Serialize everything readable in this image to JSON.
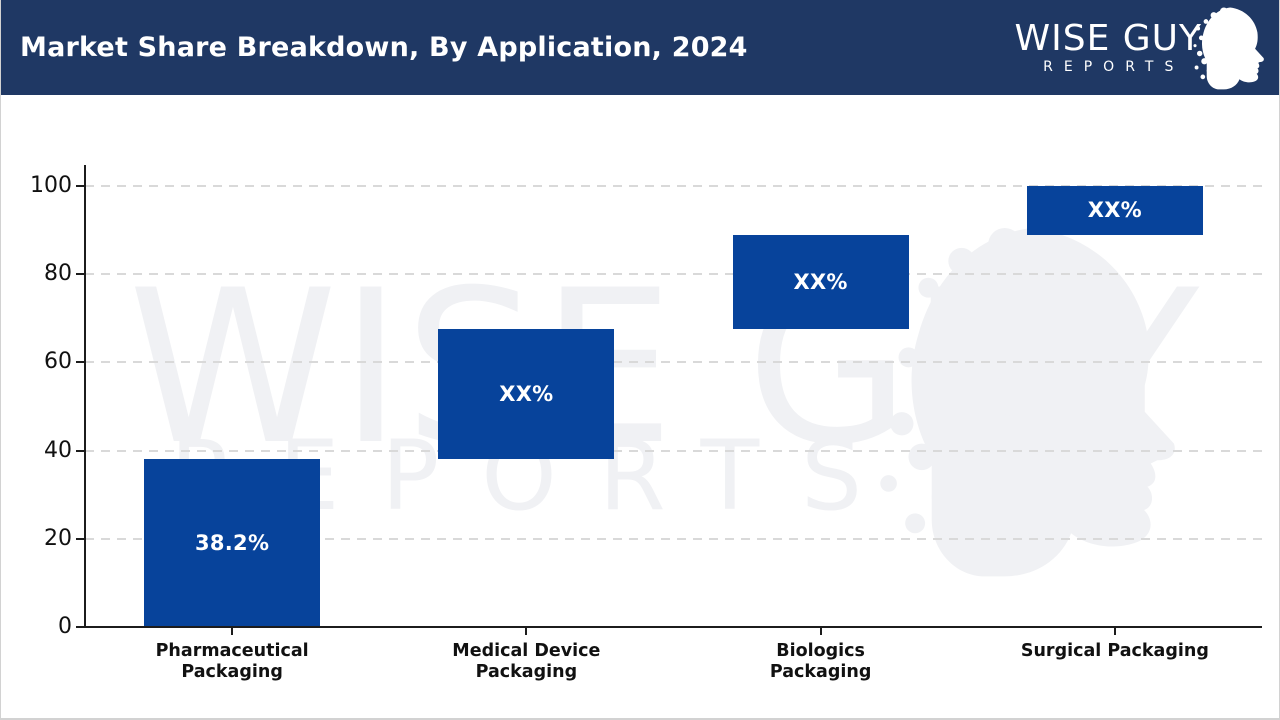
{
  "header": {
    "title": "Market Share Breakdown, By Application, 2024",
    "logo": {
      "line1": "WISE GUY",
      "line2": "REPORTS"
    }
  },
  "watermark": {
    "line1": "WISE GUY",
    "line2": "REPORTS"
  },
  "colors": {
    "header_bg": "#1f3864",
    "bar": "#07439b",
    "bar_label_text": "#ffffff",
    "grid": "#d9d9d9",
    "watermark": "#f0f1f4",
    "axis": "#1c1c1c"
  },
  "chart_data": {
    "type": "bar",
    "variant": "waterfall",
    "title": "Market Share Breakdown, By Application, 2024",
    "categories": [
      "Pharmaceutical Packaging",
      "Medical Device Packaging",
      "Biologics Packaging",
      "Surgical Packaging"
    ],
    "category_label_lines": [
      [
        "Pharmaceutical",
        "Packaging"
      ],
      [
        "Medical Device",
        "Packaging"
      ],
      [
        "Biologics",
        "Packaging"
      ],
      [
        "Surgical Packaging"
      ]
    ],
    "segments": [
      {
        "category": "Pharmaceutical Packaging",
        "start": 0,
        "end": 38.2,
        "value": 38.2,
        "label": "38.2%"
      },
      {
        "category": "Medical Device Packaging",
        "start": 38.2,
        "end": 67.5,
        "value": 29.3,
        "label": "XX%"
      },
      {
        "category": "Biologics Packaging",
        "start": 67.5,
        "end": 89.0,
        "value": 21.5,
        "label": "XX%"
      },
      {
        "category": "Surgical Packaging",
        "start": 89.0,
        "end": 100.0,
        "value": 11.0,
        "label": "XX%"
      }
    ],
    "ylim": [
      0,
      100
    ],
    "yticks": [
      0,
      20,
      40,
      60,
      80,
      100
    ],
    "xlabel": "",
    "ylabel": "",
    "grid": "horizontal-dashed",
    "legend": "none"
  }
}
